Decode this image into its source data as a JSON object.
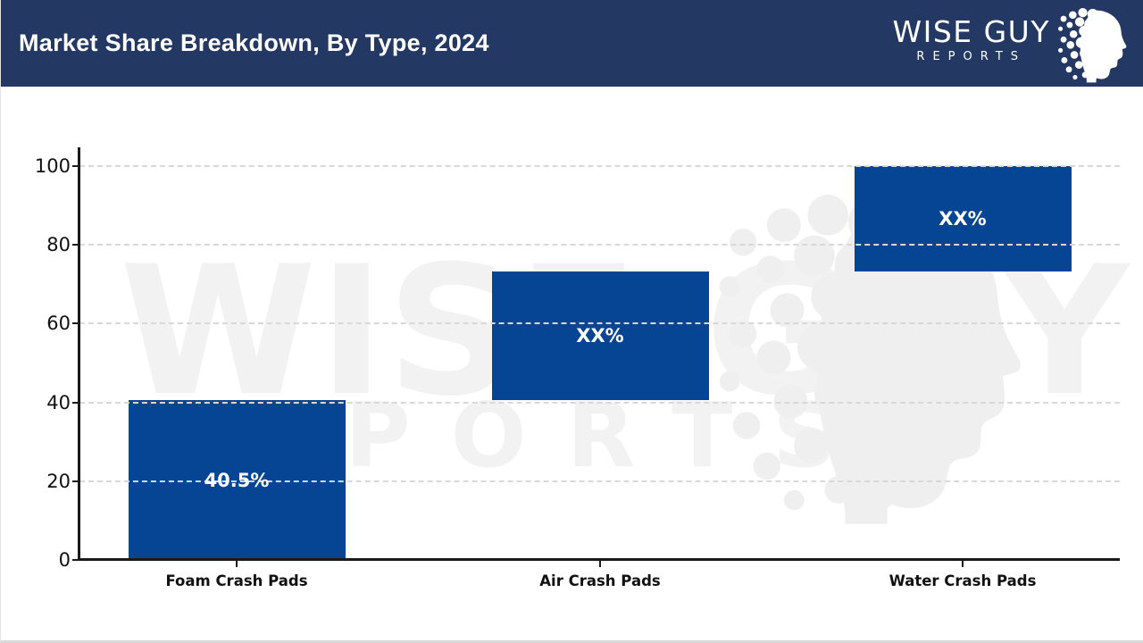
{
  "header": {
    "title": "Market Share Breakdown, By Type, 2024",
    "bg_color": "#233863",
    "logo": {
      "name": "WISE GUY",
      "sub": "REPORTS"
    }
  },
  "watermark": {
    "name": "WISE GUY",
    "sub": "REPORTS"
  },
  "chart_data": {
    "type": "bar",
    "variant": "floating-segment-waterfall",
    "title": "Market Share Breakdown, By Type, 2024",
    "categories": [
      "Foam Crash Pads",
      "Air Crash Pads",
      "Water Crash Pads"
    ],
    "series": [
      {
        "name": "Market share (%)",
        "segments": [
          {
            "category": "Foam Crash Pads",
            "start": 0,
            "end": 40.5,
            "label": "40.5%"
          },
          {
            "category": "Air Crash Pads",
            "start": 40.5,
            "end": 73.2,
            "label": "XX%"
          },
          {
            "category": "Water Crash Pads",
            "start": 73.2,
            "end": 100,
            "label": "XX%"
          }
        ]
      }
    ],
    "ylim": [
      0,
      100
    ],
    "yticks": [
      0,
      20,
      40,
      60,
      80,
      100
    ],
    "xlabel": "",
    "ylabel": "",
    "legend": "none",
    "grid": {
      "axis": "y",
      "style": "dashed",
      "color": "#d8d8d8",
      "drawn_above_bars": true
    },
    "bar_color": "#064593",
    "bar_label_color": "#ffffff",
    "axis_color": "#1a1a1a",
    "tick_label_color": "#111111"
  }
}
